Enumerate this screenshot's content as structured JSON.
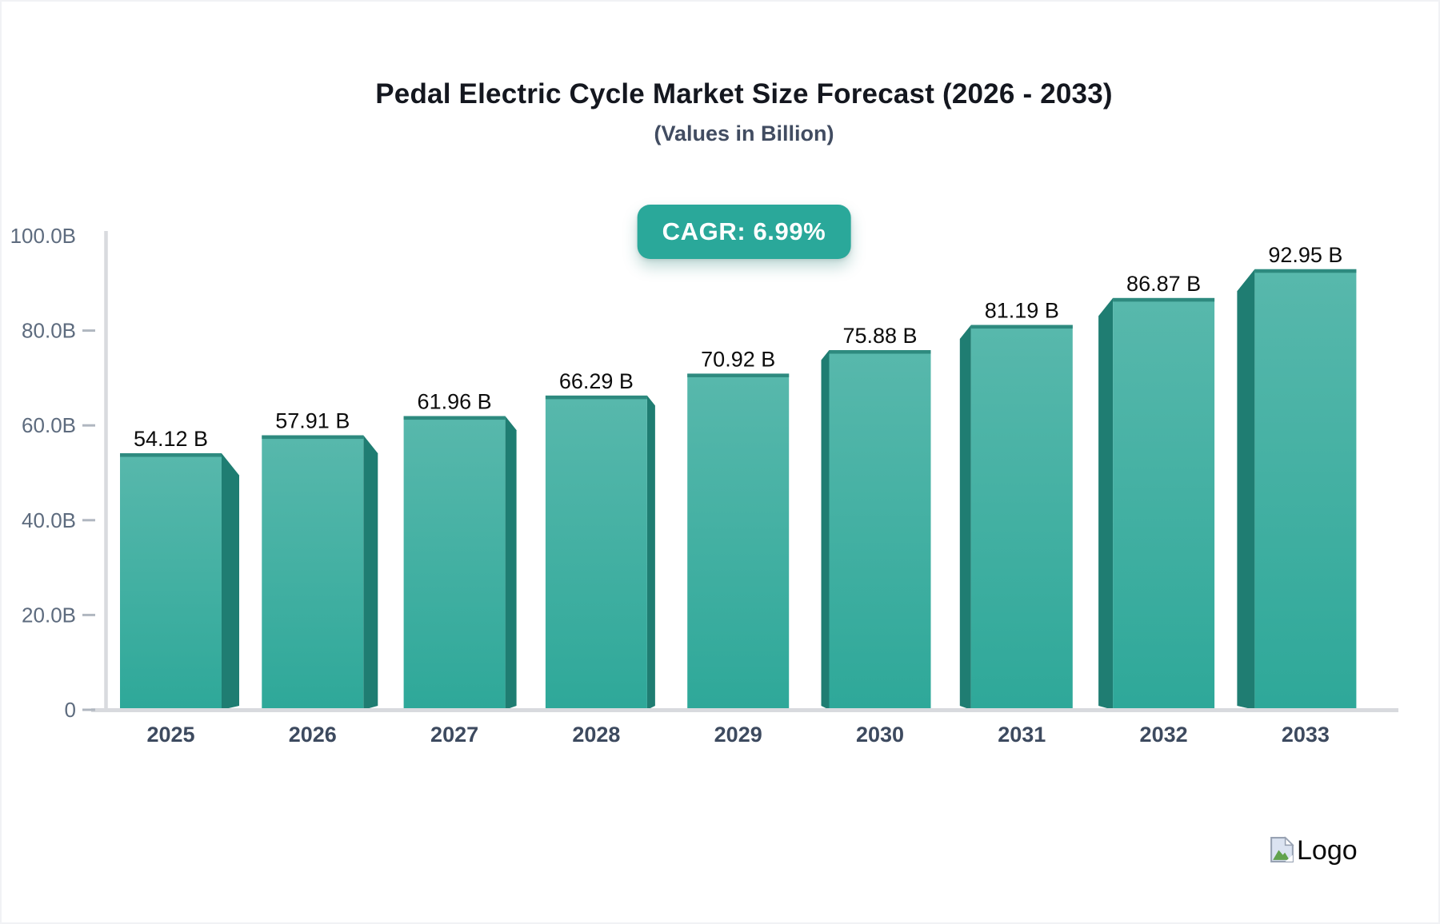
{
  "header": {
    "title": "Pedal Electric Cycle Market Size Forecast (2026 - 2033)",
    "subtitle": "(Values in Billion)",
    "cagr_label": "CAGR: 6.99%"
  },
  "footer": {
    "logo_alt": "Logo"
  },
  "colors": {
    "accent_teal": "#2aa89a",
    "bar_face_top": "#58b8ac",
    "bar_face_bottom": "#2ea899",
    "bar_side": "#1f7d72",
    "bar_top_edge": "#2e8a7f",
    "axis_line": "#d8dade",
    "tick_dash": "#b0b7c0",
    "y_label": "#5d6b7e",
    "x_label": "#3d4a5f",
    "value_label": "#0c0c0c"
  },
  "chart_data": {
    "type": "bar",
    "title": "Pedal Electric Cycle Market Size Forecast (2026 - 2033)",
    "subtitle": "(Values in Billion)",
    "annotation": "CAGR: 6.99%",
    "unit": "B",
    "categories": [
      "2025",
      "2026",
      "2027",
      "2028",
      "2029",
      "2030",
      "2031",
      "2032",
      "2033"
    ],
    "values": [
      54.12,
      57.91,
      61.96,
      66.29,
      70.92,
      75.88,
      81.19,
      86.87,
      92.95
    ],
    "value_labels": [
      "54.12 B",
      "57.91 B",
      "61.96 B",
      "66.29 B",
      "70.92 B",
      "75.88 B",
      "81.19 B",
      "86.87 B",
      "92.95 B"
    ],
    "ylim": [
      0,
      100
    ],
    "y_ticks": [
      {
        "label": "100.0B",
        "value": 100,
        "dash": false
      },
      {
        "label": "80.0B",
        "value": 80,
        "dash": true
      },
      {
        "label": "60.0B",
        "value": 60,
        "dash": true
      },
      {
        "label": "40.0B",
        "value": 40,
        "dash": true
      },
      {
        "label": "20.0B",
        "value": 20,
        "dash": true
      },
      {
        "label": "0",
        "value": 0,
        "dash": true
      }
    ],
    "grid": false,
    "legend": false,
    "bar_style": "3d-perspective"
  }
}
